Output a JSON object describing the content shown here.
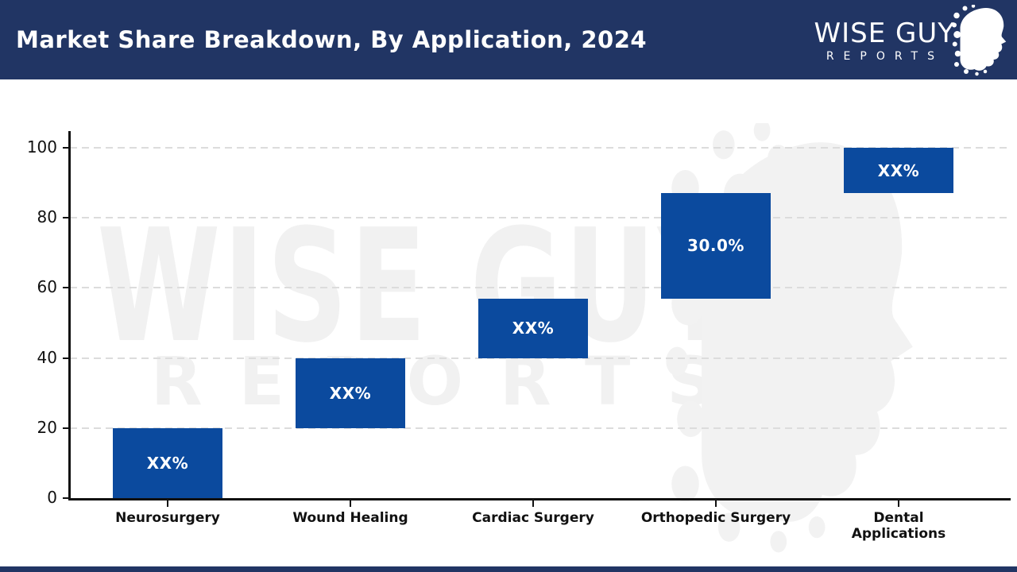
{
  "header": {
    "title": "Market Share Breakdown, By Application, 2024",
    "bg_color": "#213564",
    "logo": {
      "wordmark": "WISE GUY",
      "subtext": "REPORTS"
    }
  },
  "icons": {
    "logo_face": "dotted-face-profile",
    "watermark_face": "dotted-face-profile"
  },
  "watermark": {
    "line1": "WISE GUY",
    "line2": "REPORTS"
  },
  "chart_data": {
    "type": "bar",
    "subtype": "waterfall",
    "title": "Market Share Breakdown, By Application, 2024",
    "categories": [
      "Neurosurgery",
      "Wound Healing",
      "Cardiac Surgery",
      "Orthopedic Surgery",
      "Dental Applications"
    ],
    "tick_labels": [
      "Neurosurgery",
      "Wound Healing",
      "Cardiac Surgery",
      "Orthopedic Surgery",
      "Dental\nApplications"
    ],
    "bars": [
      {
        "category": "Neurosurgery",
        "start": 0,
        "end": 20,
        "value": 20,
        "label": "XX%"
      },
      {
        "category": "Wound Healing",
        "start": 20,
        "end": 40,
        "value": 20,
        "label": "XX%"
      },
      {
        "category": "Cardiac Surgery",
        "start": 40,
        "end": 57,
        "value": 17,
        "label": "XX%"
      },
      {
        "category": "Orthopedic Surgery",
        "start": 57,
        "end": 87,
        "value": 30,
        "label": "30.0%"
      },
      {
        "category": "Dental Applications",
        "start": 87,
        "end": 100,
        "value": 13,
        "label": "XX%"
      }
    ],
    "xlabel": "",
    "ylabel": "",
    "yticks": [
      0,
      20,
      40,
      60,
      80,
      100
    ],
    "ylim": [
      0,
      105
    ],
    "grid": "horizontal-dashed",
    "legend": "none",
    "bar_color": "#0b4a9e",
    "grid_color": "#dcdcdc",
    "axis_color": "#111111",
    "value_label_color": "#ffffff"
  }
}
